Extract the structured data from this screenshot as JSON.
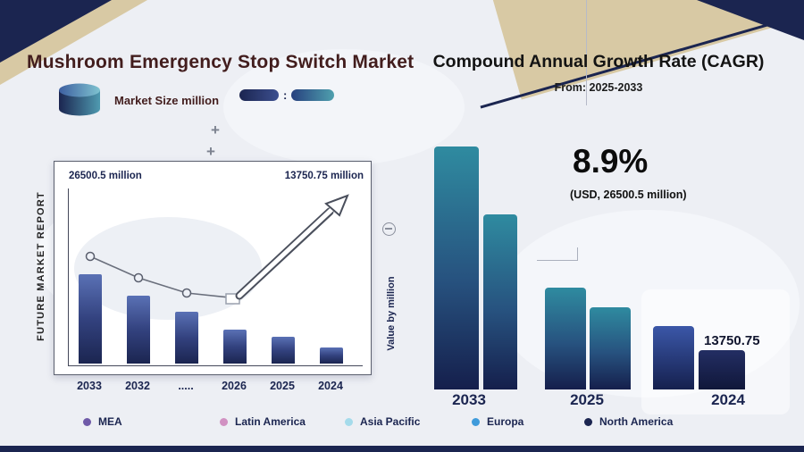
{
  "page": {
    "bg": "#edeff4",
    "accent_navy": "#1b2550",
    "accent_teal": "#2f8ba0",
    "accent_beige": "#d8c9a4",
    "title_color": "#421d1d"
  },
  "decor": {
    "plus": "+",
    "colon": ":"
  },
  "left": {
    "title": "Mushroom Emergency Stop Switch Market",
    "market_size_label": "Market Size million",
    "watermark": "FUTURE MARKET REPORT",
    "annotation_left": "26500.5 million",
    "annotation_right": "13750.75 million",
    "value_axis_label": "Value by million",
    "x_labels": [
      "2033",
      "2032",
      ".....",
      "2026",
      "2025",
      "2024"
    ]
  },
  "right": {
    "title": "Compound Annual Growth Rate (CAGR)",
    "subtitle": "From: 2025-2033",
    "cagr_value": "8.9%",
    "cagr_note": "(USD, 26500.5 million)",
    "value_label": "13750.75",
    "group_labels": [
      "2033",
      "2025",
      "2024"
    ]
  },
  "footer_legend": [
    {
      "label": "MEA",
      "color": "#6f5aa8"
    },
    {
      "label": "Latin America",
      "color": "#d191c2"
    },
    {
      "label": "Asia Pacific",
      "color": "#a5dbeb"
    },
    {
      "label": "Europa",
      "color": "#3f9bdb"
    },
    {
      "label": "North America",
      "color": "#1b2550"
    }
  ],
  "chart_data": [
    {
      "type": "bar",
      "title": "Mushroom Emergency Stop Switch Market - Market Size million",
      "categories": [
        "2033",
        "2032",
        ".....",
        "2026",
        "2025",
        "2024"
      ],
      "series": [
        {
          "name": "Market Size million",
          "values_relative": [
            1.0,
            0.76,
            0.58,
            0.38,
            0.3,
            0.18
          ]
        }
      ],
      "labeled_values": {
        "2033": "26500.5 million",
        "2024": "13750.75 million"
      },
      "xlabel": "",
      "ylabel": "Value by million",
      "grid": false,
      "annotations": [
        "declining trend line with markers",
        "upward forecast arrow toward 13750.75 million"
      ]
    },
    {
      "type": "bar",
      "title": "Compound Annual Growth Rate (CAGR) 8.9% (USD, 26500.5 million), From: 2025-2033",
      "categories": [
        "2033",
        "2025",
        "2024"
      ],
      "series": [
        {
          "name": "bar-1",
          "values_relative": [
            1.0,
            0.42,
            0.26
          ]
        },
        {
          "name": "bar-2",
          "values_relative": [
            0.72,
            0.34,
            0.16
          ]
        }
      ],
      "labeled_values": {
        "2024": "13750.75"
      },
      "grid": false,
      "legend_position": "bottom"
    }
  ]
}
